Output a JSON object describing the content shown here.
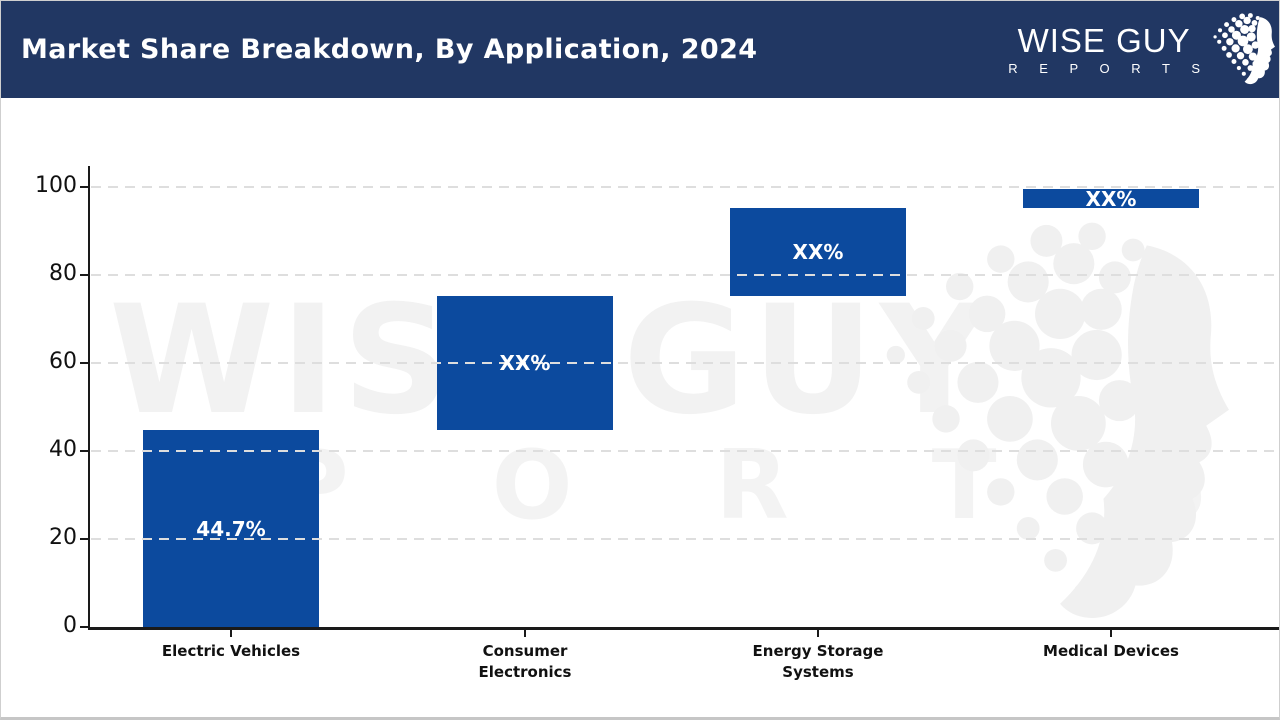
{
  "header": {
    "title": "Market Share Breakdown, By Application, 2024",
    "logo": {
      "line1": "WISE GUY",
      "line2": "R E P O R T S"
    }
  },
  "watermark": {
    "line1": "WISE GUY",
    "line2": "P O R T S"
  },
  "chart_data": {
    "type": "bar",
    "subtype": "waterfall",
    "title": "Market Share Breakdown, By Application, 2024",
    "categories": [
      "Electric Vehicles",
      "Consumer\nElectronics",
      "Energy Storage\nSystems",
      "Medical Devices"
    ],
    "segments": [
      {
        "category": "Electric Vehicles",
        "start": 0,
        "end": 44.7,
        "label": "44.7%"
      },
      {
        "category": "Consumer Electronics",
        "start": 44.7,
        "end": 75.2,
        "label": "XX%"
      },
      {
        "category": "Energy Storage Systems",
        "start": 75.2,
        "end": 95.2,
        "label": "XX%"
      },
      {
        "category": "Medical Devices",
        "start": 95.2,
        "end": 99.5,
        "label": "XX%"
      }
    ],
    "yticks": [
      0,
      20,
      40,
      60,
      80,
      100
    ],
    "ylim": [
      0,
      105
    ],
    "grid": true,
    "legend": false,
    "bar_color": "#0c4a9e",
    "bar_label_color": "#ffffff",
    "gridline_color": "#dedede",
    "axis_color": "#1a1a1a"
  },
  "colors": {
    "header_bg": "#213763",
    "watermark": "#f2f2f2"
  }
}
